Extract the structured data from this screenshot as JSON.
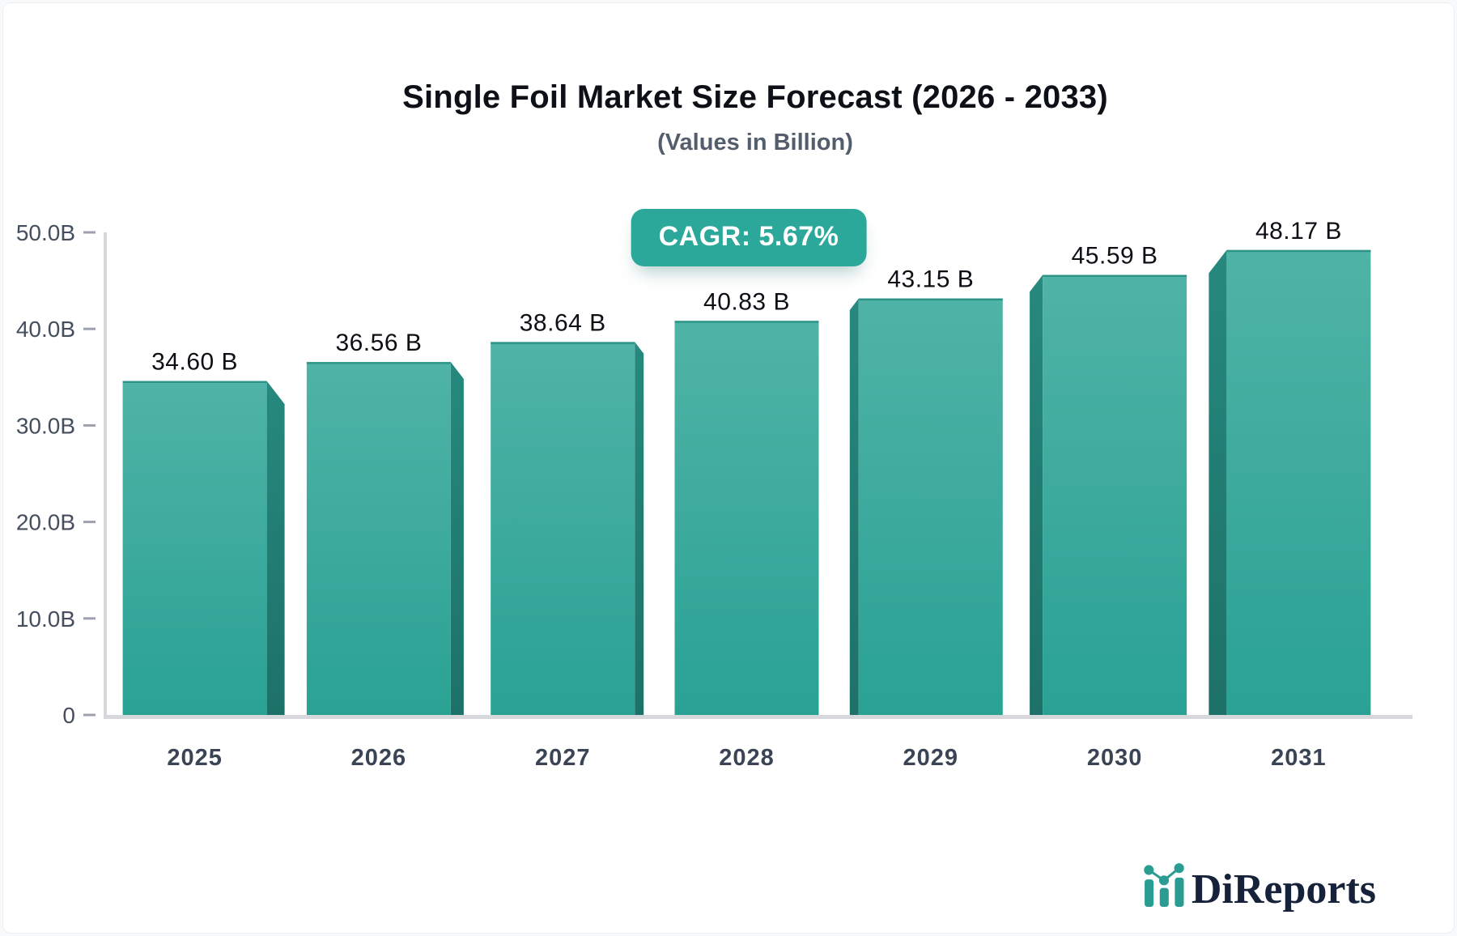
{
  "page": {
    "background": "#f8f9fb",
    "card_background": "#ffffff"
  },
  "chart_data": {
    "type": "bar",
    "title": "Single Foil Market Size Forecast (2026 - 2033)",
    "subtitle": "(Values in Billion)",
    "badge": "CAGR: 5.67%",
    "categories": [
      "2025",
      "2026",
      "2027",
      "2028",
      "2029",
      "2030",
      "2031"
    ],
    "values": [
      34.6,
      36.56,
      38.64,
      40.83,
      43.15,
      45.59,
      48.17
    ],
    "value_labels": [
      "34.60 B",
      "36.56 B",
      "38.64 B",
      "40.83 B",
      "43.15 B",
      "45.59 B",
      "48.17 B"
    ],
    "y_ticks": [
      {
        "value": 0,
        "label": "0"
      },
      {
        "value": 10,
        "label": "10.0B"
      },
      {
        "value": 20,
        "label": "20.0B"
      },
      {
        "value": 30,
        "label": "30.0B"
      },
      {
        "value": 40,
        "label": "40.0B"
      },
      {
        "value": 50,
        "label": "50.0B"
      }
    ],
    "ylim": [
      0,
      50
    ],
    "grid": false,
    "legend": false,
    "style": "3d-perspective-bars",
    "colors": {
      "bar_top": "#50b3a7",
      "bar_bottom": "#29a294",
      "bar_edge": "#2e9488",
      "bar_side_top": "#26897e",
      "bar_side_bottom": "#1d7168",
      "axis_line": "#d6d8dc",
      "tick_dash": "#9ba2ad",
      "tick_text": "#454e5d",
      "category_text": "#3b4454",
      "value_text": "#0c0f14",
      "badge_bg": "#2ba89a",
      "badge_text": "#ffffff"
    }
  },
  "footer": {
    "brand": "DiReports",
    "brand_color": "#16213a",
    "logo_icon": "bar-chart-trend-icon",
    "logo_color": "#2a9c92"
  }
}
